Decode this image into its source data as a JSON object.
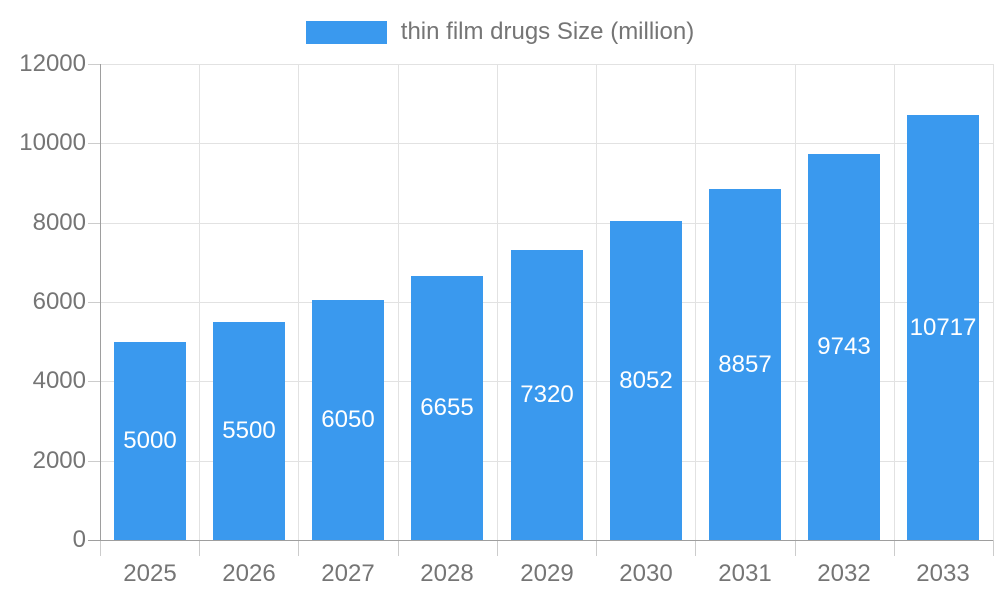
{
  "legend": {
    "label": "thin film drugs Size (million)"
  },
  "chart_data": {
    "type": "bar",
    "title": "thin film drugs Size (million)",
    "series_name": "thin film drugs Size (million)",
    "categories": [
      "2025",
      "2026",
      "2027",
      "2028",
      "2029",
      "2030",
      "2031",
      "2032",
      "2033"
    ],
    "values": [
      5000,
      5500,
      6050,
      6655,
      7320,
      8052,
      8857,
      9743,
      10717
    ],
    "xlabel": "",
    "ylabel": "",
    "ylim": [
      0,
      12000
    ],
    "yticks": [
      0,
      2000,
      4000,
      6000,
      8000,
      10000,
      12000
    ],
    "grid": true,
    "legend_position": "top-center",
    "value_label_position": "inside-center",
    "colors": {
      "bar": "#3A99EE",
      "gridline": "#E2E2E2",
      "axis_line": "#9E9E9E",
      "tick": "#CCCCCC",
      "text": "#757575",
      "value_label": "#FFFFFF",
      "background": "#FFFFFF"
    }
  }
}
